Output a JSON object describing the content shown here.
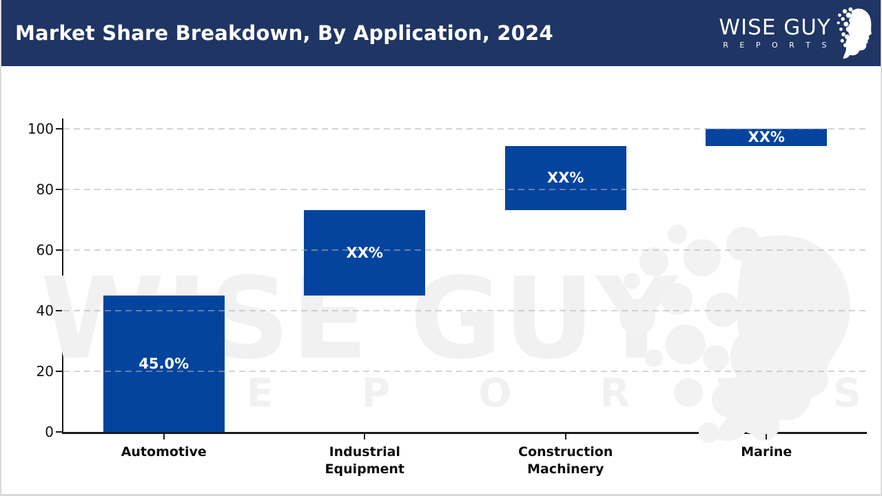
{
  "header": {
    "title": "Market Share Breakdown, By Application, 2024",
    "logo": {
      "line1": "WISE GUY",
      "line2": "R E P O R T S"
    }
  },
  "watermark": {
    "line1": "WISE GUY",
    "line2": "R E P O R T S"
  },
  "colors": {
    "header_bg": "#1f3564",
    "bar": "#04449e",
    "grid_dash": "#d7d7d7",
    "axis": "#1a1a1a",
    "bar_label": "#ffffff",
    "watermark": "#f1f1f1"
  },
  "chart_data": {
    "type": "bar",
    "subtype": "waterfall-segments",
    "title": "Market Share Breakdown, By Application, 2024",
    "categories": [
      "Automotive",
      "Industrial\nEquipment",
      "Construction\nMachinery",
      "Marine"
    ],
    "segments": [
      {
        "category": "Automotive",
        "label": "45.0%",
        "start": 0,
        "end": 45.0
      },
      {
        "category": "Industrial Equipment",
        "label": "XX%",
        "start": 45.0,
        "end": 73.2
      },
      {
        "category": "Construction Machinery",
        "label": "XX%",
        "start": 73.2,
        "end": 94.4
      },
      {
        "category": "Marine",
        "label": "XX%",
        "start": 94.4,
        "end": 100.0
      }
    ],
    "values_shown": [
      "45.0%",
      "XX%",
      "XX%",
      "XX%"
    ],
    "xlabel": "",
    "ylabel": "",
    "ylim": [
      0,
      100
    ],
    "yticks": [
      0,
      20,
      40,
      60,
      80,
      100
    ],
    "grid": "horizontal-dashed",
    "legend": "none"
  }
}
